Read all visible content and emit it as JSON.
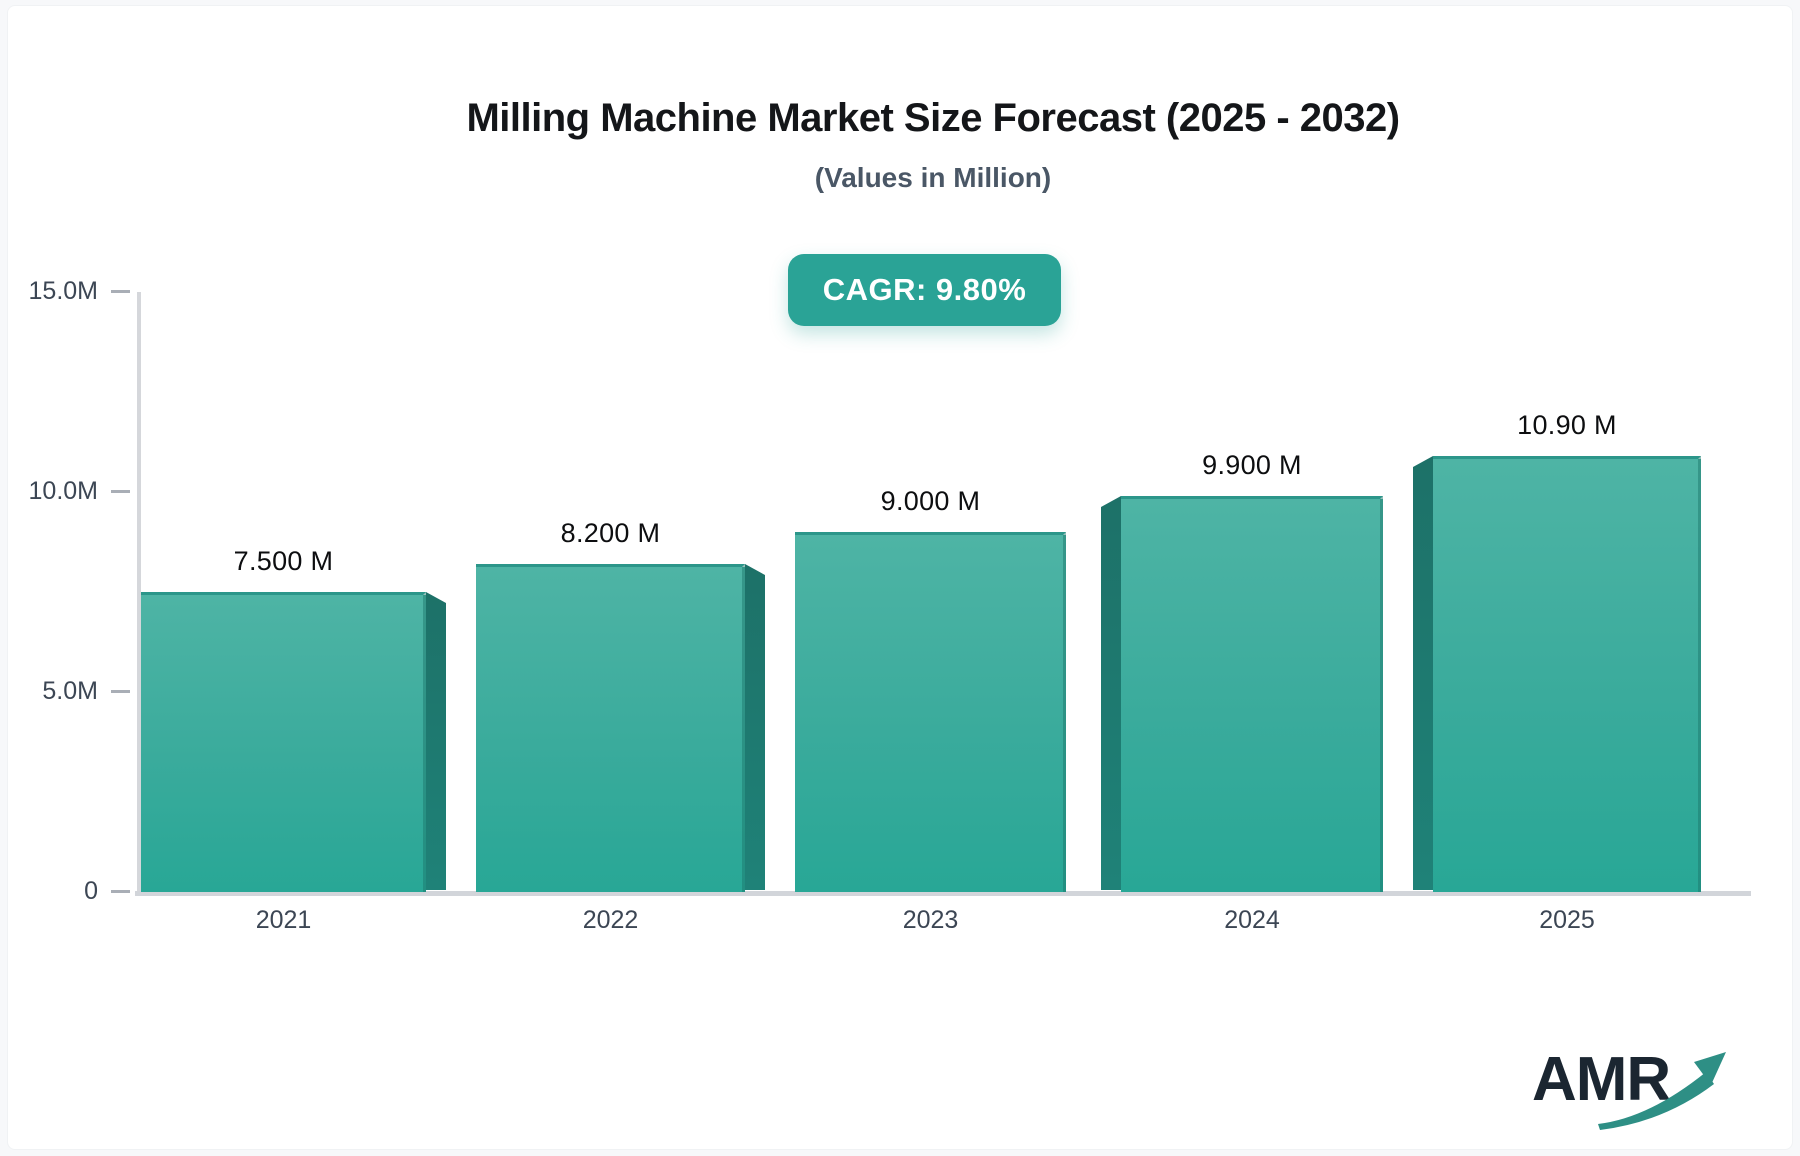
{
  "page": {
    "title": "Milling Machine Market Size Forecast (2025 - 2032)",
    "subtitle": "(Values in Million)",
    "cagr_label": "CAGR: 9.80%"
  },
  "colors": {
    "accent_teal": "#2aa396",
    "bar_gradient_top": "#4eb4a5",
    "bar_gradient_bottom": "#28a796",
    "bar_side_dark": "#1f7d72",
    "axis_line": "#d4d6da",
    "axis_text": "#3c4654",
    "value_label_text": "#0d0e10",
    "badge_text": "#ffffff",
    "logo_text": "#1b2631",
    "logo_arrow": "#2e8f85"
  },
  "chart_data": {
    "type": "bar",
    "title": "Milling Machine Market Size Forecast (2025 - 2032)",
    "subtitle": "(Values in Million)",
    "unit": "Million",
    "categories": [
      "2021",
      "2022",
      "2023",
      "2024",
      "2025"
    ],
    "values": [
      7.5,
      8.2,
      9.0,
      9.9,
      10.9
    ],
    "bar_labels": [
      "7.500 M",
      "8.200 M",
      "9.000 M",
      "9.900 M",
      "10.90 M"
    ],
    "cagr": "9.80%",
    "xlabel": "",
    "ylabel": "",
    "ylim": [
      0,
      15
    ],
    "yticks": [
      {
        "value": 0,
        "label": "0"
      },
      {
        "value": 5,
        "label": "5.0M"
      },
      {
        "value": 10,
        "label": "10.0M"
      },
      {
        "value": 15,
        "label": "15.0M"
      }
    ],
    "grid": false,
    "legend": false,
    "bar_style": "3d-teal-gradient"
  },
  "logo": {
    "text": "AMR",
    "arrow_icon": "growth-arrow"
  }
}
